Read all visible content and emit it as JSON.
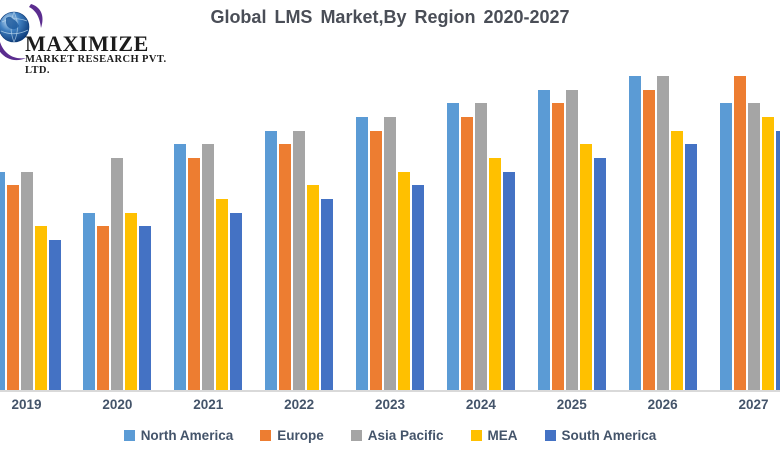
{
  "logo": {
    "line1": "MAXIMIZE",
    "line2": "MARKET RESEARCH PVT. LTD."
  },
  "chart_data": {
    "type": "bar",
    "title": "Global LMS Market,By Region 2020-2027",
    "categories": [
      "2019",
      "2020",
      "2021",
      "2022",
      "2023",
      "2024",
      "2025",
      "2026",
      "2027"
    ],
    "series": [
      {
        "name": "North America",
        "color": "#5B9BD5",
        "values": [
          16,
          13,
          18,
          19,
          20,
          21,
          22,
          23,
          21
        ]
      },
      {
        "name": "Europe",
        "color": "#ED7D31",
        "values": [
          15,
          12,
          17,
          18,
          19,
          20,
          21,
          22,
          23
        ]
      },
      {
        "name": "Asia Pacific",
        "color": "#A5A5A5",
        "values": [
          16,
          17,
          18,
          19,
          20,
          21,
          22,
          23,
          21
        ]
      },
      {
        "name": "MEA",
        "color": "#FFC000",
        "values": [
          12,
          13,
          14,
          15,
          16,
          17,
          18,
          19,
          20
        ]
      },
      {
        "name": "South America",
        "color": "#4472C4",
        "values": [
          11,
          12,
          13,
          14,
          15,
          16,
          17,
          18,
          19
        ]
      }
    ],
    "ylim": [
      0,
      24
    ],
    "value_axis_visible": false,
    "gridlines": false,
    "legend_position": "bottom",
    "axis_line_color": "#D9D9D9",
    "text_color": "#44546A"
  }
}
